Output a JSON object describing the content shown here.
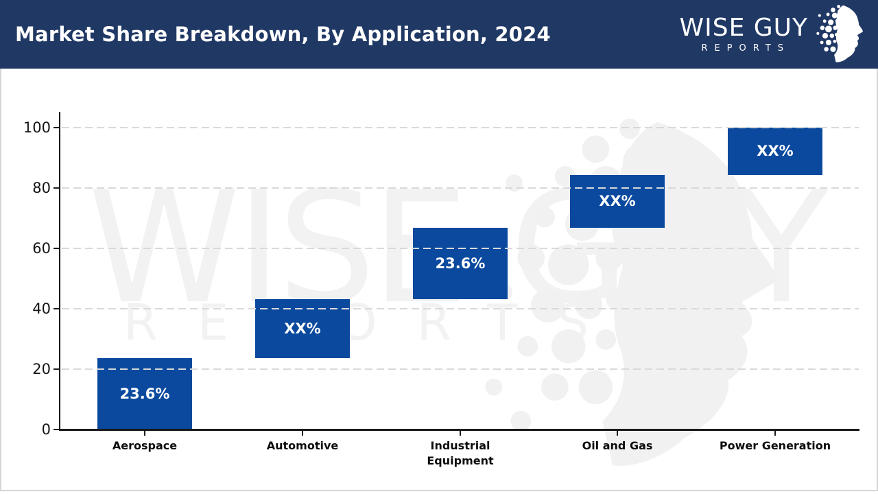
{
  "header": {
    "title": "Market Share Breakdown, By Application, 2024",
    "logo": {
      "line1": "WISE GUY",
      "line2": "REPORTS"
    }
  },
  "watermark": {
    "line1": "WISE GUY",
    "line2": "REPORTS"
  },
  "chart_data": {
    "type": "bar",
    "subtype": "waterfall-stacked-market-share",
    "title": "Market Share Breakdown, By Application, 2024",
    "categories": [
      "Aerospace",
      "Automotive",
      "Industrial\nEquipment",
      "Oil and Gas",
      "Power Generation"
    ],
    "segments": [
      {
        "category": "Aerospace",
        "start": 0,
        "end": 23.6,
        "label": "23.6%"
      },
      {
        "category": "Automotive",
        "start": 23.6,
        "end": 43.2,
        "label": "XX%"
      },
      {
        "category": "Industrial Equipment",
        "start": 43.2,
        "end": 66.8,
        "label": "23.6%"
      },
      {
        "category": "Oil and Gas",
        "start": 66.8,
        "end": 84.4,
        "label": "XX%"
      },
      {
        "category": "Power Generation",
        "start": 84.4,
        "end": 100,
        "label": "XX%"
      }
    ],
    "y_ticks": [
      0,
      20,
      40,
      60,
      80,
      100
    ],
    "ylim": [
      0,
      100
    ],
    "xlabel": "",
    "ylabel": "",
    "grid": "horizontal-dashed",
    "legend": "none",
    "bar_color": "#0a499e",
    "bar_label_color": "#ffffff",
    "header_color": "#203864",
    "gridline_color": "#d9d9d9"
  }
}
